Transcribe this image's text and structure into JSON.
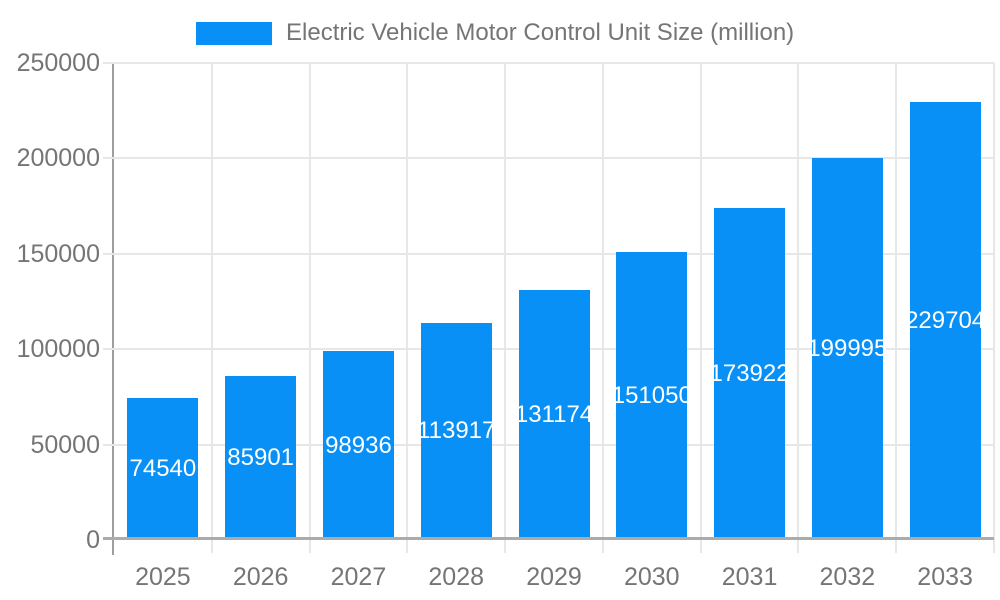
{
  "chart_data": {
    "type": "bar",
    "title": "Electric Vehicle Motor Control Unit Size (million)",
    "categories": [
      "2025",
      "2026",
      "2027",
      "2028",
      "2029",
      "2030",
      "2031",
      "2032",
      "2033"
    ],
    "values": [
      74540,
      85901,
      98936,
      113917,
      131174,
      151050,
      173922,
      199995,
      229704
    ],
    "data_labels": [
      "74540",
      "85901",
      "98936",
      "113917",
      "131174",
      "151050",
      "173922",
      "199995",
      "229704"
    ],
    "xlabel": "",
    "ylabel": "",
    "ylim": [
      0,
      250000
    ],
    "yticks": [
      0,
      50000,
      100000,
      150000,
      200000,
      250000
    ],
    "ytick_labels": [
      "0",
      "50000",
      "100000",
      "150000",
      "200000",
      "250000"
    ],
    "grid": "on",
    "legend_position": "top",
    "colors": {
      "bar": "#0890F7",
      "bar_label_text": "#ffffff",
      "axis_text": "#757575",
      "gridline": "#e7e7e7",
      "axis_line": "#9e9e9e",
      "baseline": "#ababab",
      "background": "#ffffff"
    }
  }
}
